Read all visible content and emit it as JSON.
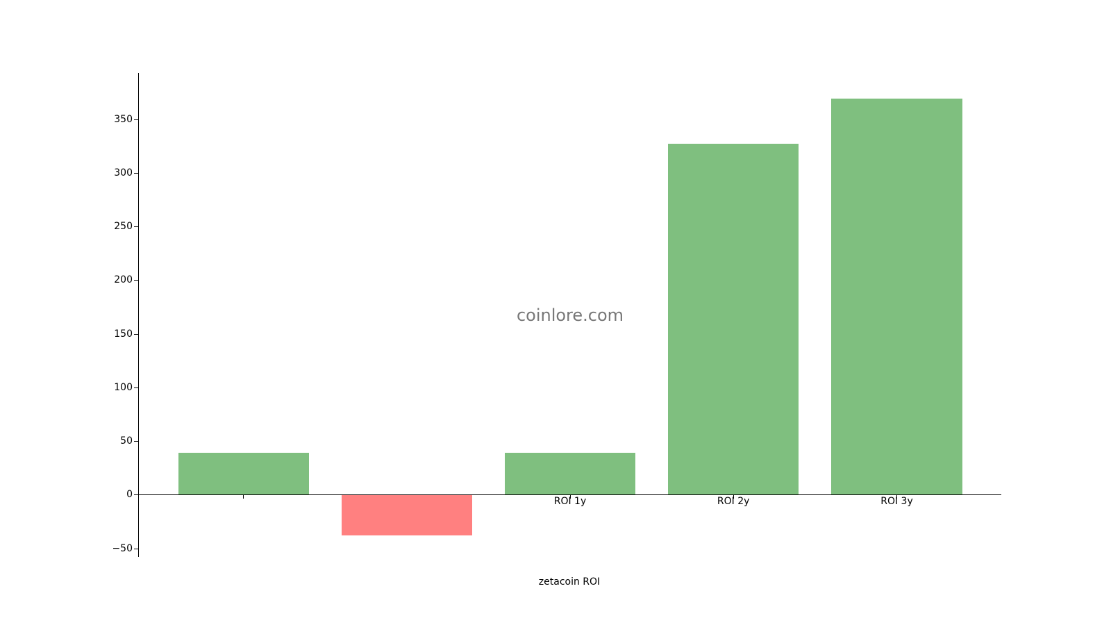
{
  "chart_data": {
    "type": "bar",
    "title": "",
    "xlabel": "zetacoin ROI",
    "ylabel": "",
    "watermark": "coinlore.com",
    "categories": [
      "",
      "",
      "ROI 1y",
      "ROI 2y",
      "ROI 3y"
    ],
    "values": [
      39,
      -37,
      39,
      327,
      369
    ],
    "bar_width": 0.8,
    "xlim": [
      -0.64,
      4.64
    ],
    "ylim": [
      -58,
      393
    ],
    "yticks": [
      -50,
      0,
      50,
      100,
      150,
      200,
      250,
      300,
      350
    ],
    "grid": false,
    "legend_position": "none",
    "colors": {
      "positive_bar": "#7fbf7f",
      "negative_bar": "#ff8080",
      "axis": "#000000",
      "tick_text": "#000000",
      "watermark_text": "#787878"
    }
  }
}
